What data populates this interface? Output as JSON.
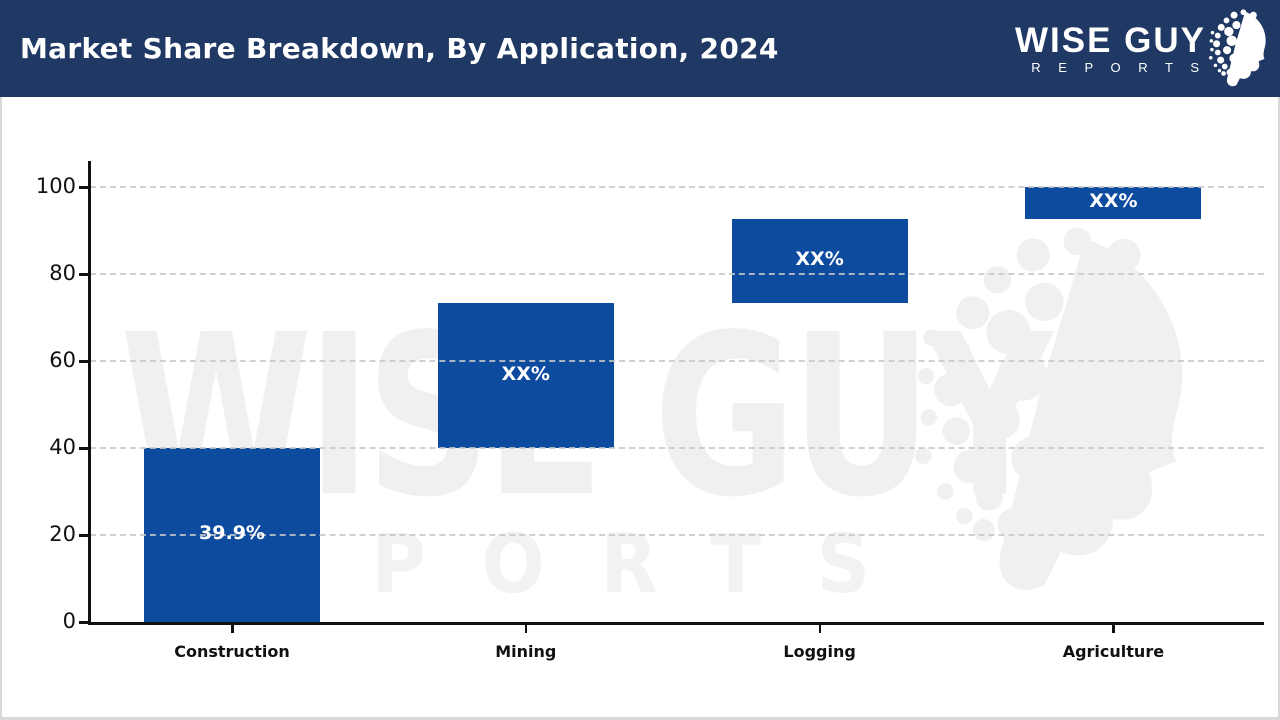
{
  "header": {
    "title": "Market Share Breakdown, By Application, 2024",
    "background": "#1f3864",
    "logo": {
      "line1": "WISE GUY",
      "line2": "R E P O R T S"
    }
  },
  "watermark": {
    "line1": "WISE GUY",
    "line2": "REPORTS"
  },
  "chart_data": {
    "type": "bar",
    "subtype": "waterfall-stacked-to-100",
    "title": "Market Share Breakdown, By Application, 2024",
    "categories": [
      "Construction",
      "Mining",
      "Logging",
      "Agriculture"
    ],
    "segments": [
      {
        "category": "Construction",
        "start": 0,
        "end": 39.9,
        "label": "39.9%"
      },
      {
        "category": "Mining",
        "start": 39.9,
        "end": 73.3,
        "label": "XX%"
      },
      {
        "category": "Logging",
        "start": 73.3,
        "end": 92.7,
        "label": "XX%"
      },
      {
        "category": "Agriculture",
        "start": 92.7,
        "end": 100,
        "label": "XX%"
      }
    ],
    "yticks": [
      0,
      20,
      40,
      60,
      80,
      100
    ],
    "ylim": [
      0,
      105.5
    ],
    "xlabel": "",
    "ylabel": "",
    "grid": "horizontal-dashed-over-bars",
    "legend": "none",
    "bar_color": "#0d4b9f",
    "bar_label_color": "#ffffff",
    "axis_color": "#111111"
  }
}
